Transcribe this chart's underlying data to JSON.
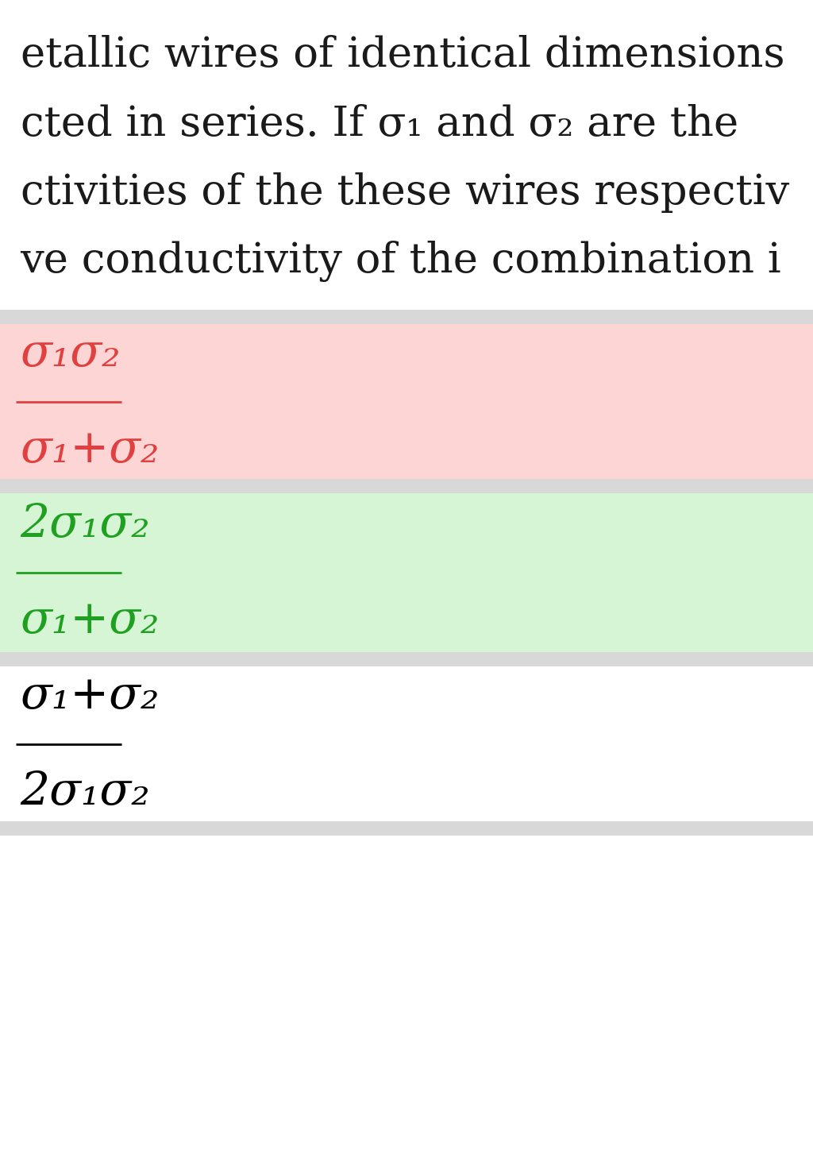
{
  "bg_color": "#ffffff",
  "question_lines": [
    "etallic wires of identical dimensions",
    "cted in series. If σ₁ and σ₂ are the",
    "ctivities of the the​se wires respectiv",
    "ve conductivity of the combination i"
  ],
  "options": [
    {
      "numerator": "σ₁σ₂",
      "denominator": "σ₁+σ₂",
      "bg_color": "#fdd5d5",
      "text_color": "#e04040",
      "selected": false
    },
    {
      "numerator": "2σ₁σ₂",
      "denominator": "σ₁+σ₂",
      "bg_color": "#d5f5d5",
      "text_color": "#20a020",
      "selected": true
    },
    {
      "numerator": "σ₁+σ₂",
      "denominator": "2σ₁σ₂",
      "bg_color": "#ffffff",
      "text_color": "#000000",
      "selected": false
    }
  ],
  "separator_color": "#d8d8d8",
  "question_text_color": "#1a1a1a",
  "question_fontsize": 38,
  "option_fontsize": 42,
  "fig_width": 10.24,
  "fig_height": 14.63,
  "dpi": 100
}
